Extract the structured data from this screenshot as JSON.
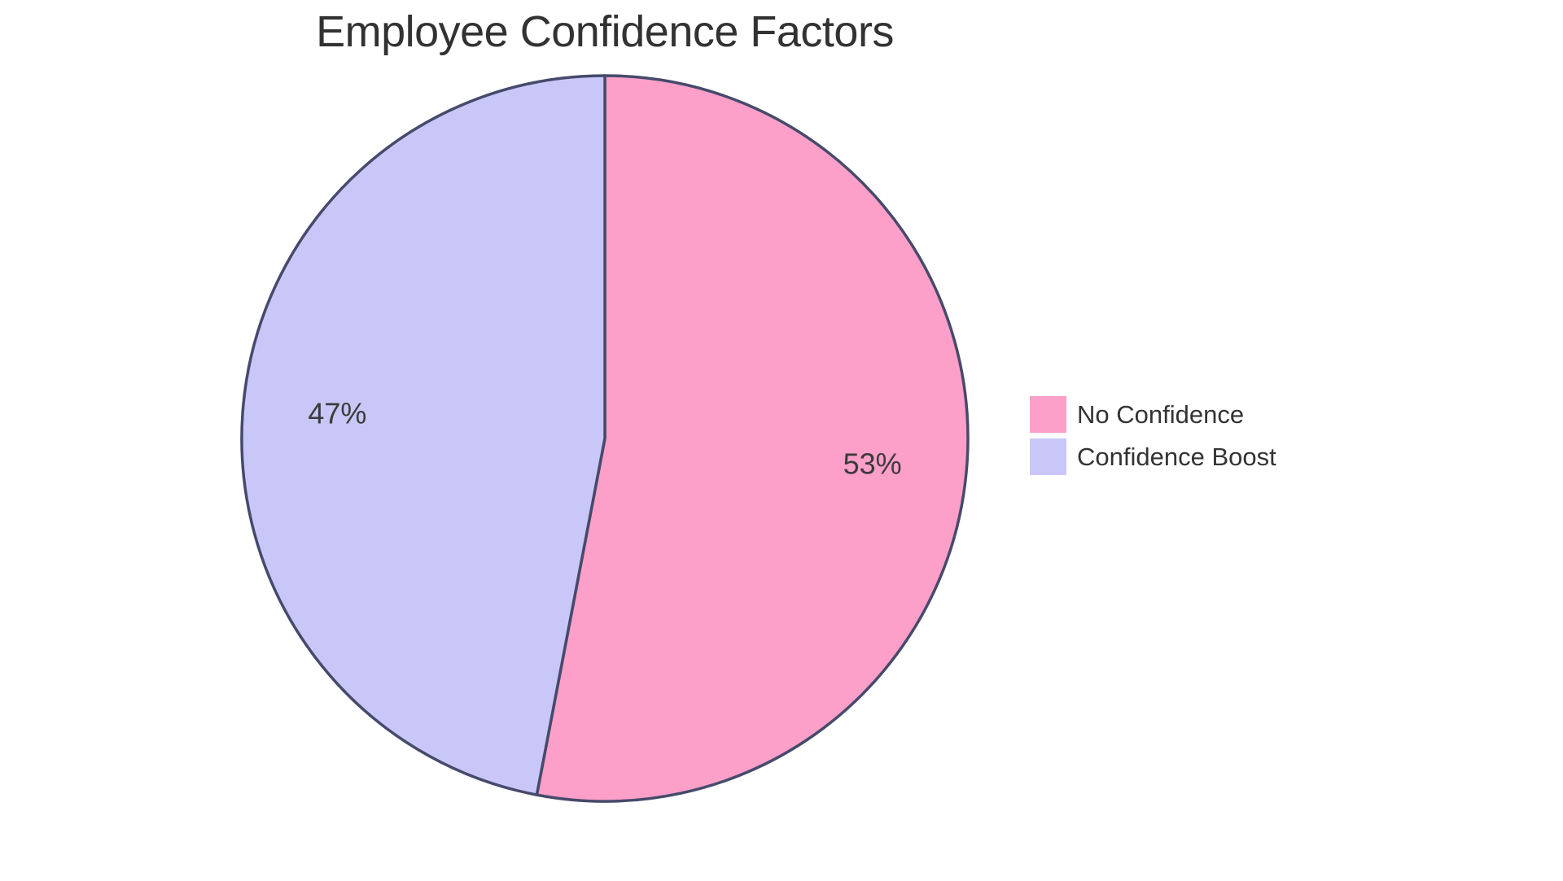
{
  "chart_data": {
    "type": "pie",
    "title": "Employee Confidence Factors",
    "labels": [
      "No Confidence",
      "Confidence Boost"
    ],
    "values": [
      53,
      47
    ],
    "percent_labels": [
      "53%",
      "47%"
    ],
    "colors": [
      "#FC9FC9",
      "#C9C7F8"
    ],
    "slice_outline_color": "#464A6B",
    "title_color": "#323232",
    "label_text_color": "#3b3b3b",
    "background_color": "#ffffff",
    "legend_position": "right",
    "start_angle_deg": -90,
    "direction": "clockwise"
  }
}
